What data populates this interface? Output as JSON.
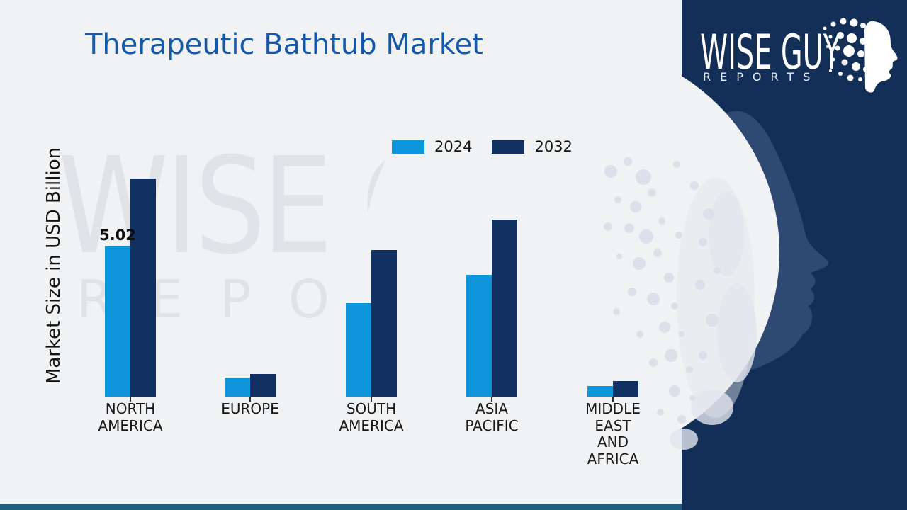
{
  "page": {
    "title": "Therapeutic Bathtub Market",
    "title_color": "#1557a8",
    "background_color": "#f1f2f3"
  },
  "watermark": {
    "line1": "WISE GUY",
    "line2": "REPORTS"
  },
  "brand": {
    "name": "WISE GUY",
    "sub": "REPORTS",
    "panel_color": "#132e57",
    "face_color": "#2e4a73",
    "footer_bar_color": "#1b5e7d"
  },
  "chart_data": {
    "type": "bar",
    "title": "Therapeutic Bathtub Market",
    "xlabel": "",
    "ylabel": "Market Size in USD Billion",
    "unit": "USD Billion",
    "grid": false,
    "legend_position": "top",
    "ylim": [
      0,
      7.3
    ],
    "categories": [
      "NORTH AMERICA",
      "EUROPE",
      "SOUTH AMERICA",
      "ASIA PACIFIC",
      "MIDDLE EAST AND AFRICA"
    ],
    "category_label_lines": [
      [
        "NORTH",
        "AMERICA"
      ],
      [
        "EUROPE"
      ],
      [
        "SOUTH",
        "AMERICA"
      ],
      [
        "ASIA",
        "PACIFIC"
      ],
      [
        "MIDDLE",
        "EAST",
        "AND",
        "AFRICA"
      ]
    ],
    "series": [
      {
        "name": "2024",
        "color": "#0d96da",
        "values": [
          5.02,
          0.64,
          3.11,
          4.05,
          0.36
        ]
      },
      {
        "name": "2032",
        "color": "#103161",
        "values": [
          7.26,
          0.75,
          4.88,
          5.89,
          0.52
        ]
      }
    ],
    "data_labels": [
      {
        "series_index": 0,
        "category_index": 0,
        "text": "5.02"
      }
    ]
  }
}
